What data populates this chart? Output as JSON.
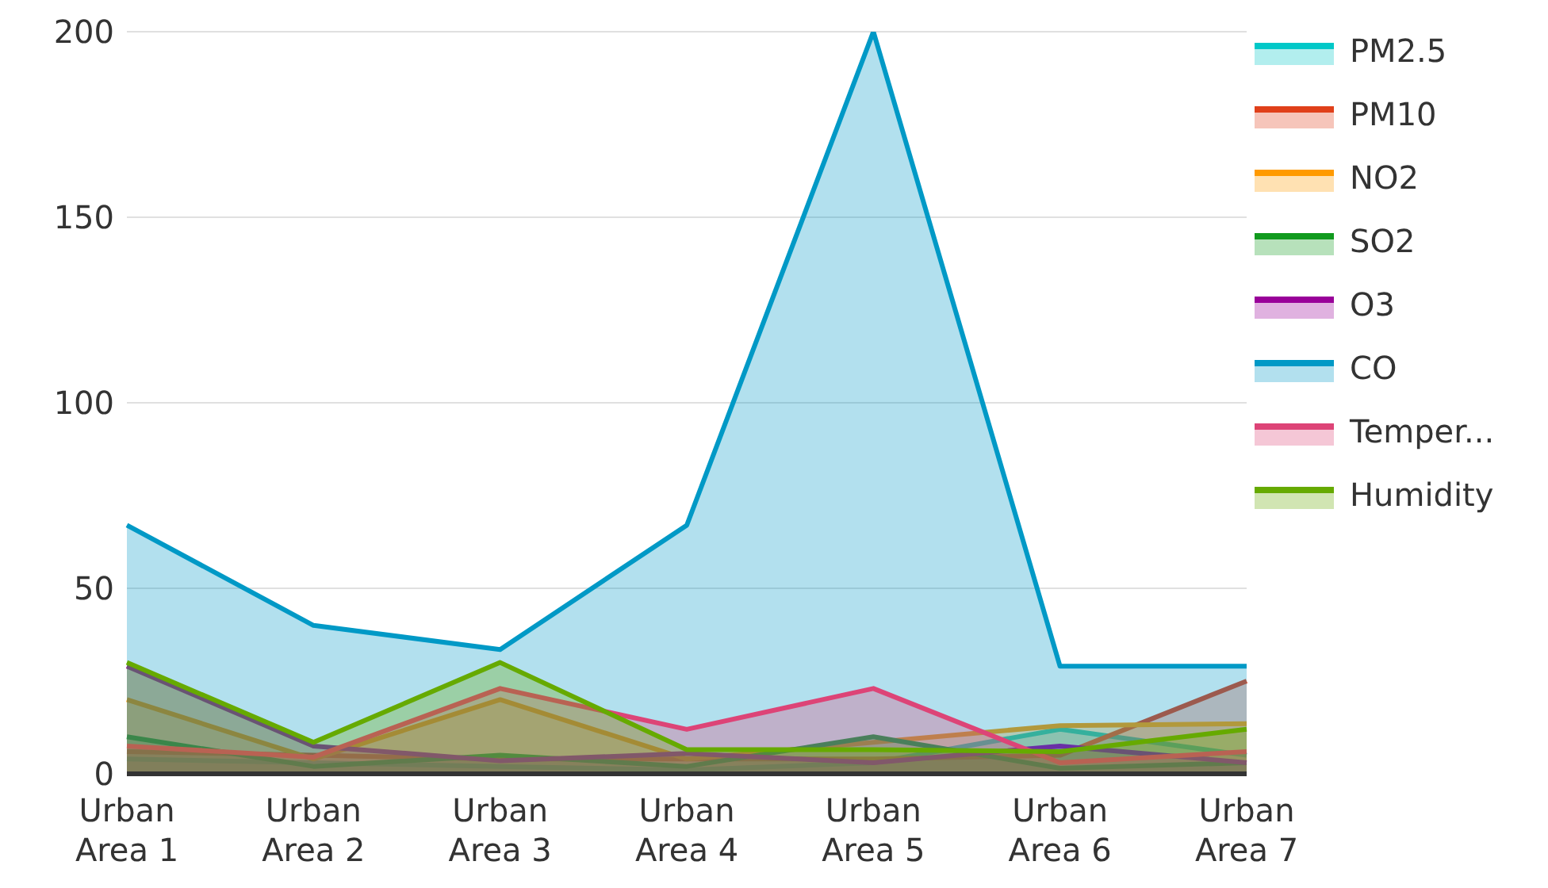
{
  "chart_data": {
    "type": "area",
    "categories": [
      "Urban Area 1",
      "Urban Area 2",
      "Urban Area 3",
      "Urban Area 4",
      "Urban Area 5",
      "Urban Area 6",
      "Urban Area 7"
    ],
    "series": [
      {
        "name": "PM2.5",
        "color": "#00c8c8",
        "values": [
          4,
          3,
          2,
          1,
          3,
          12,
          5
        ]
      },
      {
        "name": "PM10",
        "color": "#e0401a",
        "values": [
          6,
          5,
          4,
          4,
          4,
          5,
          25
        ]
      },
      {
        "name": "NO2",
        "color": "#ff9a00",
        "values": [
          20,
          4,
          20,
          4,
          8.5,
          13,
          13.5
        ]
      },
      {
        "name": "SO2",
        "color": "#119a1e",
        "values": [
          10,
          2,
          5,
          2,
          10,
          1.5,
          3
        ]
      },
      {
        "name": "O3",
        "color": "#990099",
        "values": [
          29,
          7.5,
          3.5,
          5.5,
          3,
          7.5,
          3
        ]
      },
      {
        "name": "CO",
        "color": "#0099c6",
        "values": [
          67,
          40,
          33.5,
          67,
          200,
          29,
          29
        ]
      },
      {
        "name": "Temper...",
        "color": "#dd4477",
        "values": [
          7.5,
          4.5,
          23,
          12,
          23,
          3,
          6
        ]
      },
      {
        "name": "Humidity",
        "color": "#66aa00",
        "values": [
          30,
          8.5,
          30,
          6.5,
          6.5,
          6,
          12
        ]
      }
    ],
    "ylim": [
      0,
      200
    ],
    "yticks": [
      0,
      50,
      100,
      150,
      200
    ],
    "grid": "y",
    "legend": "right"
  }
}
